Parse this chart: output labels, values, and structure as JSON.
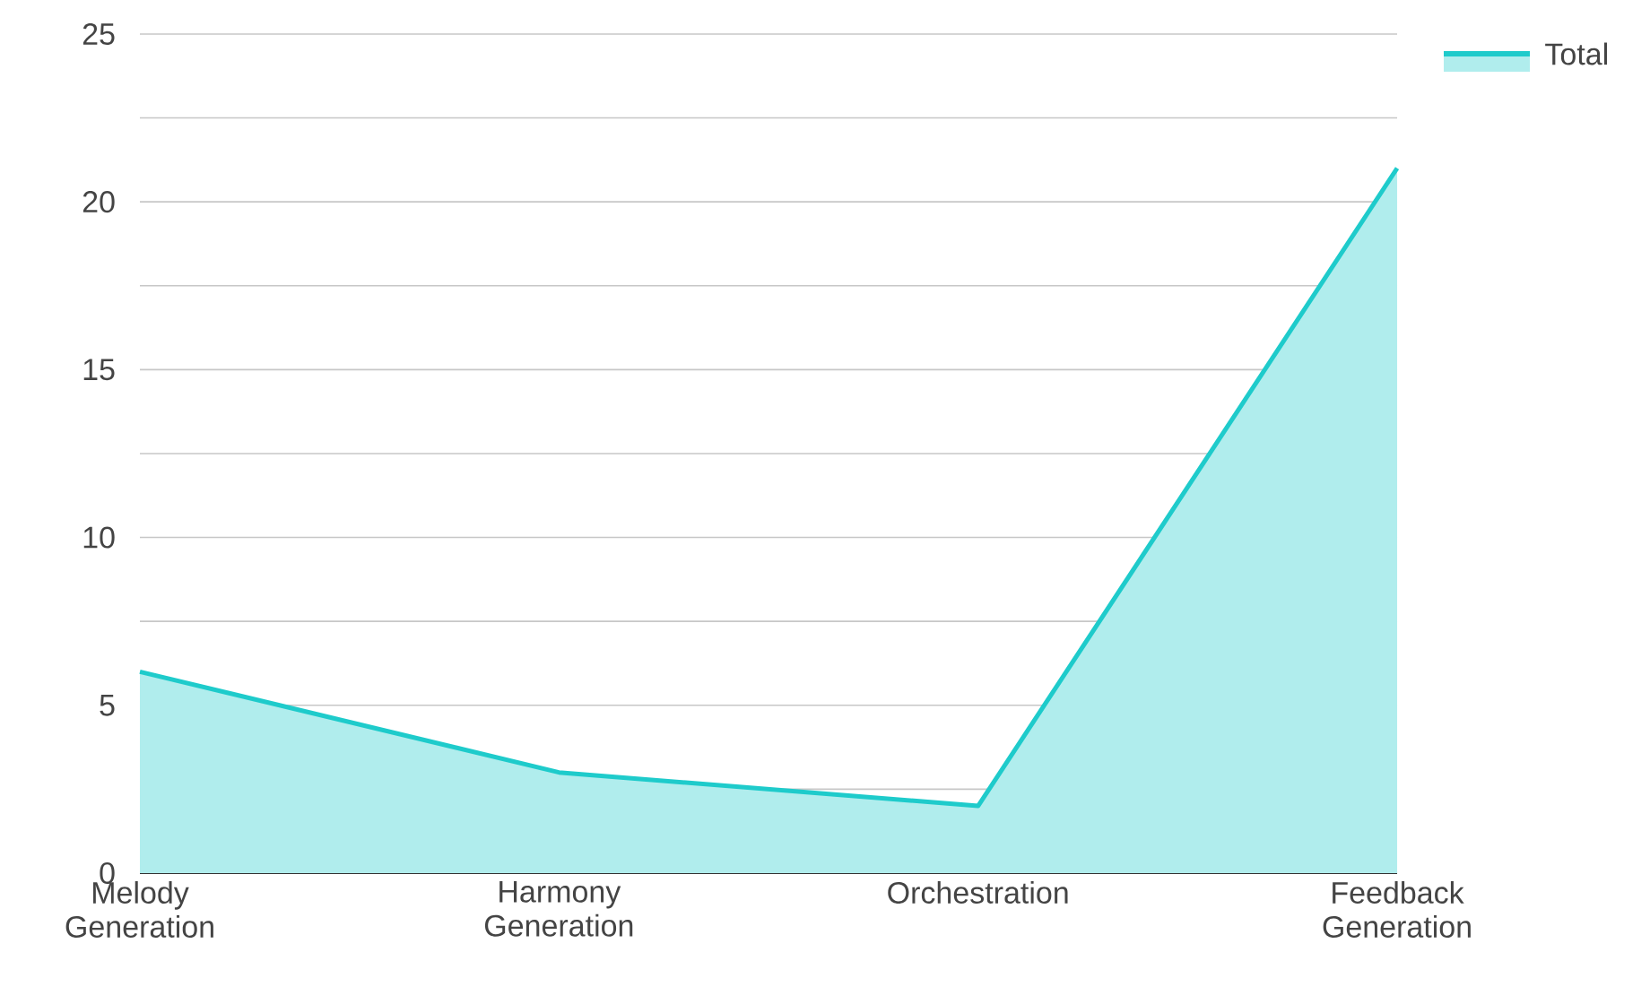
{
  "chart_data": {
    "type": "area",
    "categories": [
      "Melody Generation",
      "Harmony Generation",
      "Orchestration",
      "Feedback Generation"
    ],
    "series": [
      {
        "name": "Total",
        "color": "#1ecbcb",
        "values": [
          6,
          3,
          2,
          21
        ]
      }
    ],
    "ylim": [
      0,
      25
    ],
    "yticks": [
      0,
      {
        "value": 2.5,
        "label": null
      },
      5,
      {
        "value": 7.5,
        "label": null
      },
      10,
      {
        "value": 12.5,
        "label": null
      },
      15,
      {
        "value": 17.5,
        "label": null
      },
      20,
      {
        "value": 22.5,
        "label": null
      },
      25
    ],
    "grid": "y",
    "legend": "top right"
  }
}
